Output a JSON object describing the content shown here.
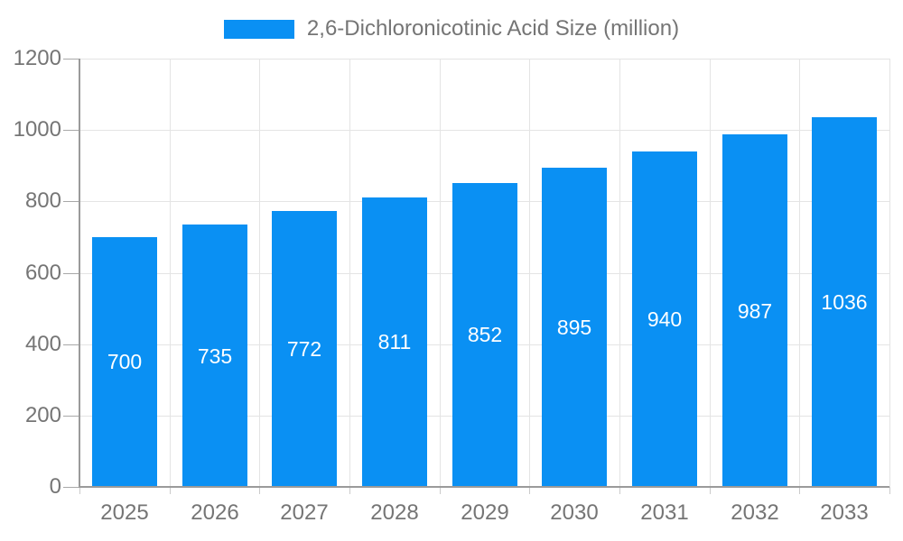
{
  "chart_data": {
    "type": "bar",
    "title": "",
    "legend": {
      "label": "2,6-Dichloronicotinic Acid Size (million)",
      "position": "top-center"
    },
    "categories": [
      "2025",
      "2026",
      "2027",
      "2028",
      "2029",
      "2030",
      "2031",
      "2032",
      "2033"
    ],
    "series": [
      {
        "name": "2,6-Dichloronicotinic Acid Size (million)",
        "values": [
          700,
          735,
          772,
          811,
          852,
          895,
          940,
          987,
          1036
        ]
      }
    ],
    "value_labels_shown": true,
    "xlabel": "",
    "ylabel": "",
    "ylim": [
      0,
      1200
    ],
    "yticks": [
      0,
      200,
      400,
      600,
      800,
      1000,
      1200
    ],
    "grid": true
  },
  "colors": {
    "bar": "#0a90f3",
    "axis_text": "#757575",
    "bar_value_text": "#ffffff",
    "grid_line": "#e4e4e4",
    "axis_line": "#9a9a9a",
    "y_tick": "#a8a8a8",
    "x_tick": "#cbcbcb",
    "background": "#ffffff"
  }
}
